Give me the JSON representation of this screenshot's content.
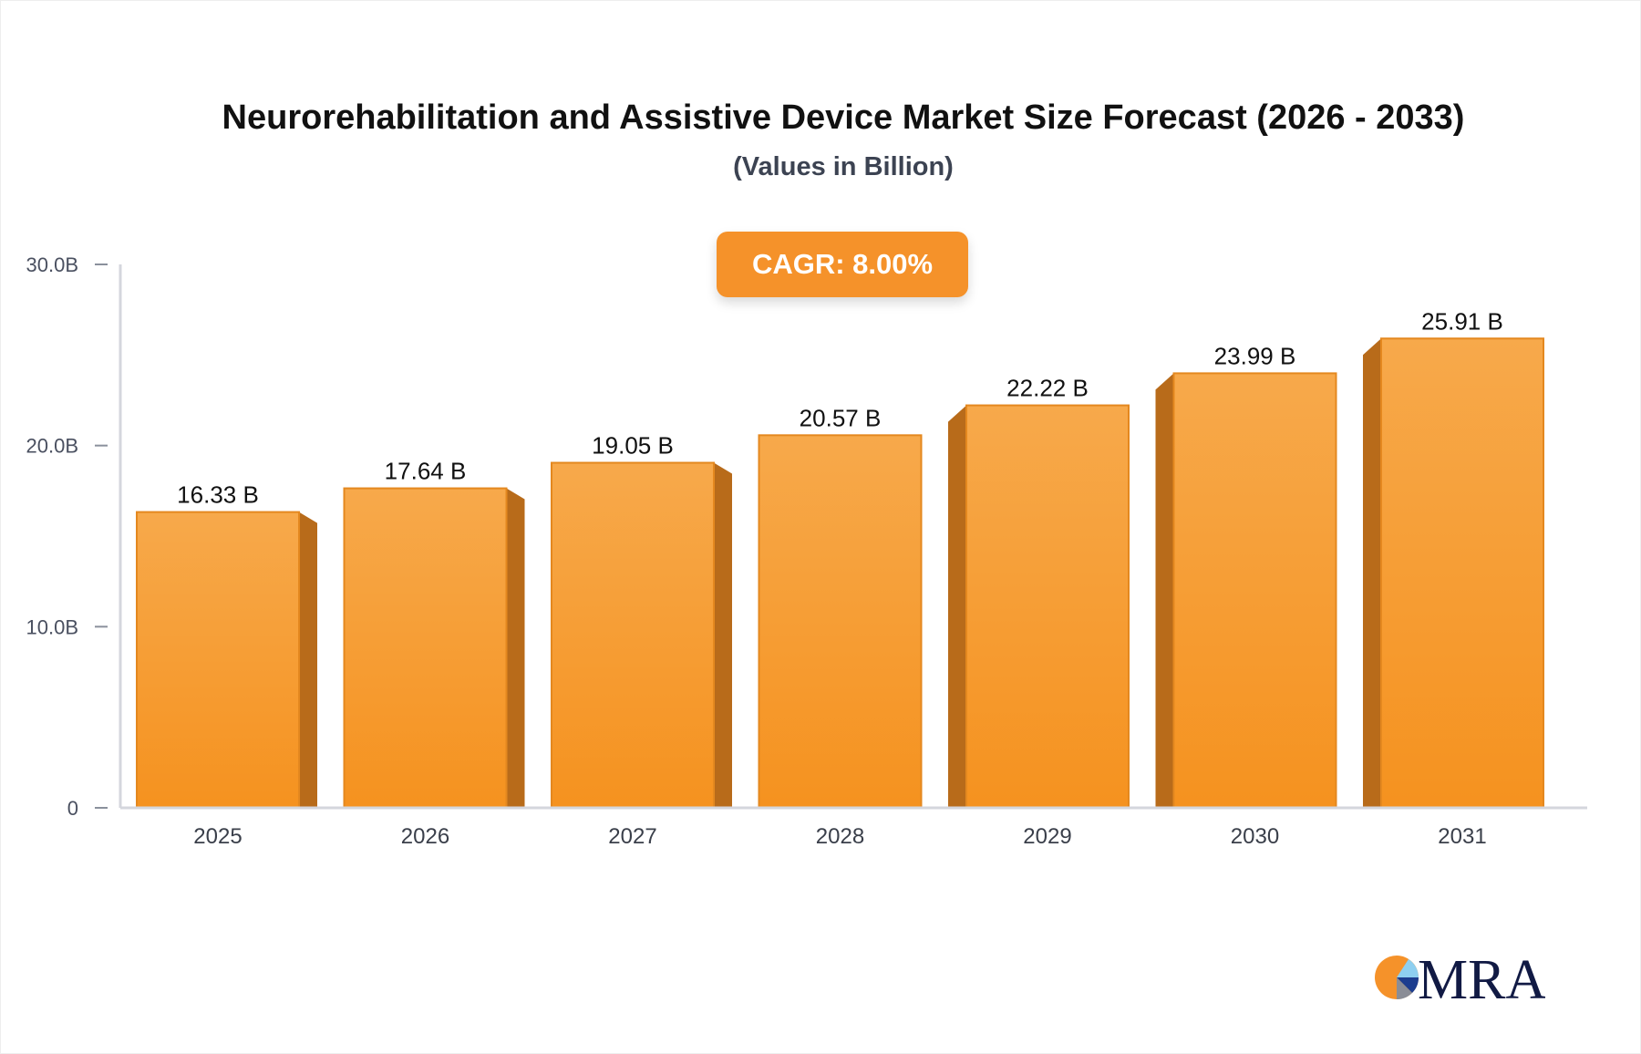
{
  "chart_data": {
    "type": "bar",
    "title": "Neurorehabilitation and Assistive Device Market Size Forecast (2026 - 2033)",
    "subtitle": "(Values in Billion)",
    "annotation": "CAGR: 8.00%",
    "categories": [
      "2025",
      "2026",
      "2027",
      "2028",
      "2029",
      "2030",
      "2031"
    ],
    "values": [
      16.33,
      17.64,
      19.05,
      20.57,
      22.22,
      23.99,
      25.91
    ],
    "data_labels": [
      "16.33 B",
      "17.64 B",
      "19.05 B",
      "20.57 B",
      "22.22 B",
      "23.99 B",
      "25.91 B"
    ],
    "yticks": [
      0,
      10,
      20,
      30
    ],
    "ytick_labels": [
      "0",
      "10.0B",
      "20.0B",
      "30.0B"
    ],
    "ylim": [
      0,
      30
    ],
    "xlabel": "",
    "ylabel": "",
    "grid": false,
    "colors": {
      "bar_top": "#f7a94b",
      "bar_bottom": "#f5921f",
      "bar_side": "#b86b1a",
      "axis": "#d4d6dd"
    }
  },
  "logo": {
    "text": "MRA"
  }
}
